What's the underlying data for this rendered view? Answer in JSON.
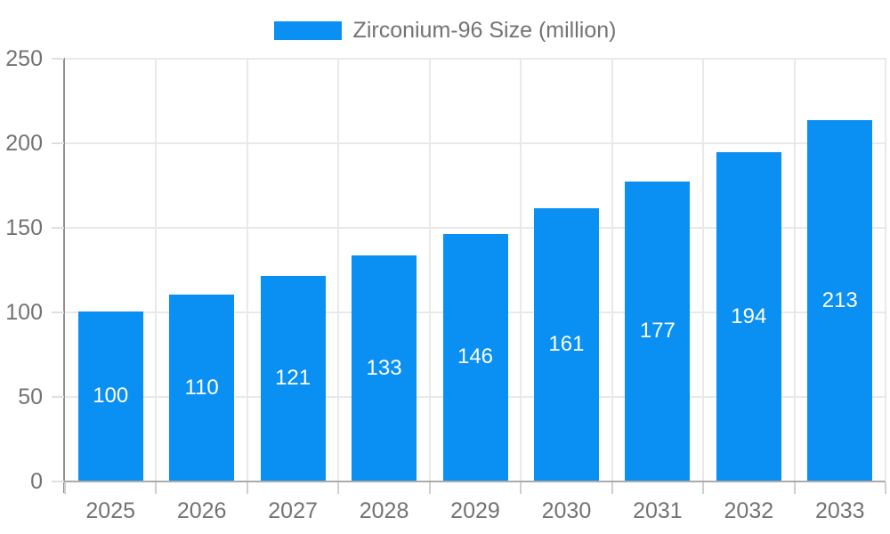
{
  "chart_data": {
    "type": "bar",
    "title": "Zirconium-96 Size (million)",
    "series_name": "Zirconium-96 Size (million)",
    "categories": [
      "2025",
      "2026",
      "2027",
      "2028",
      "2029",
      "2030",
      "2031",
      "2032",
      "2033"
    ],
    "values": [
      100,
      110,
      121,
      133,
      146,
      161,
      177,
      194,
      213
    ],
    "xlabel": "",
    "ylabel": "",
    "ylim": [
      0,
      250
    ],
    "y_ticks": [
      0,
      50,
      100,
      150,
      200,
      250
    ],
    "grid": true,
    "legend_position": "top",
    "bar_labels_inside": true
  },
  "colors": {
    "bar": "#0a8ff2",
    "bar_label": "#ffffff",
    "axis_text": "#737373",
    "grid_line": "#e9e9e9",
    "y_axis_line": "#8f8f8f",
    "x_axis_line": "#ababab",
    "tick_mark": "#cfcfcf",
    "background": "#ffffff"
  }
}
